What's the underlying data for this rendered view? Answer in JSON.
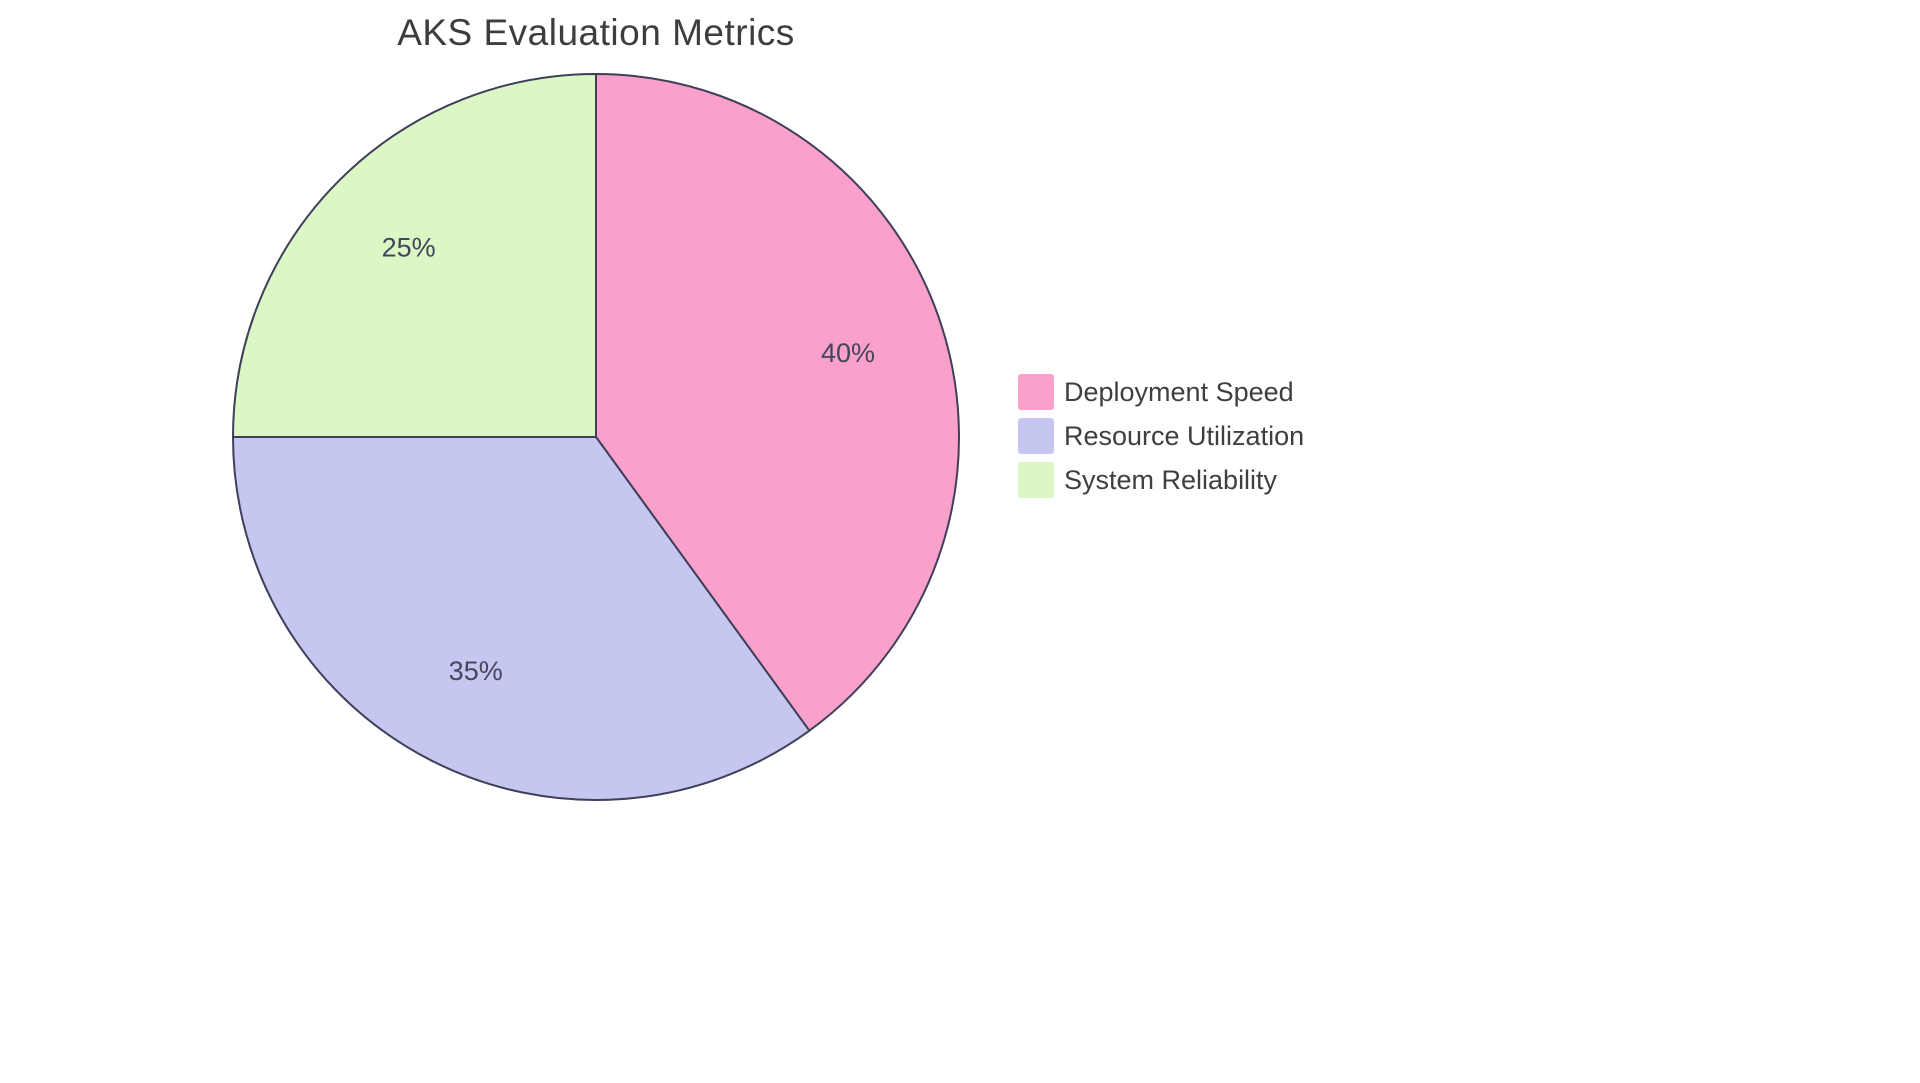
{
  "chart_data": {
    "type": "pie",
    "title": "AKS Evaluation Metrics",
    "labels": [
      "Deployment Speed",
      "Resource Utilization",
      "System Reliability"
    ],
    "values": [
      40,
      35,
      25
    ],
    "percent_labels": [
      "40%",
      "35%",
      "25%"
    ],
    "colors": [
      "#F9A1CB",
      "#C6C7F0",
      "#DBF7C5"
    ],
    "stroke_color": "#3f3f5a",
    "start_angle": "top",
    "direction": "clockwise",
    "legend_position": "right"
  }
}
